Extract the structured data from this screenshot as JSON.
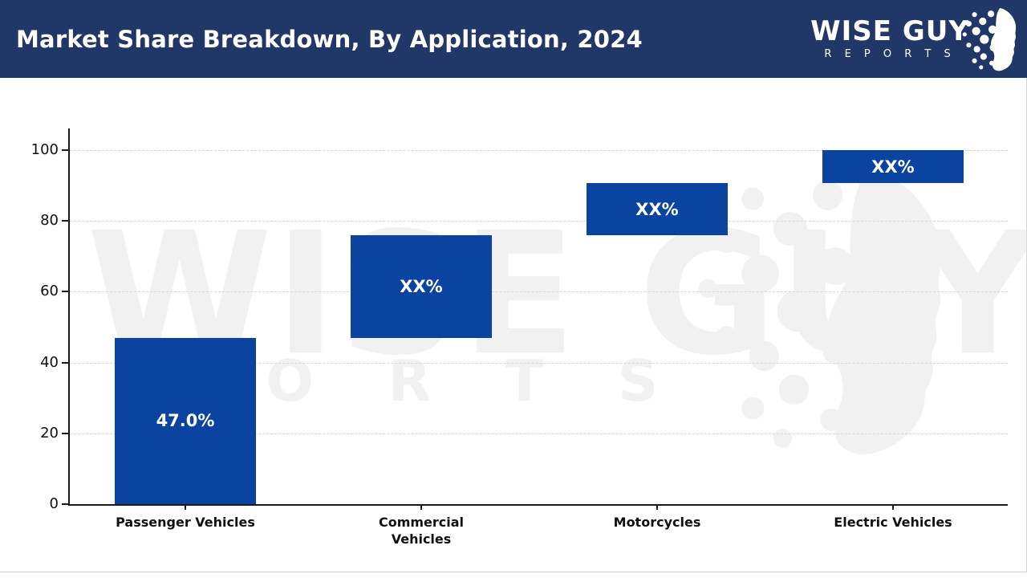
{
  "header": {
    "title": "Market Share Breakdown, By Application, 2024",
    "background": "#203767",
    "logo": {
      "line1": "WISE GUY",
      "line2": "R E P O R T S"
    }
  },
  "watermark": {
    "line1": "WISE GUY",
    "line2": "P O R T S"
  },
  "chart_data": {
    "type": "bar",
    "subtype": "waterfall",
    "title": "Market Share Breakdown, By Application, 2024",
    "categories": [
      "Passenger Vehicles",
      "Commercial\nVehicles",
      "Motorcycles",
      "Electric Vehicles"
    ],
    "bars": [
      {
        "category": "Passenger Vehicles",
        "label": "47.0%",
        "start": 0,
        "end": 47
      },
      {
        "category": "Commercial\nVehicles",
        "label": "XX%",
        "start": 47,
        "end": 76
      },
      {
        "category": "Motorcycles",
        "label": "XX%",
        "start": 76,
        "end": 90.6
      },
      {
        "category": "Electric Vehicles",
        "label": "XX%",
        "start": 90.6,
        "end": 100
      }
    ],
    "ylim": [
      0,
      100
    ],
    "yticks": [
      0,
      20,
      40,
      60,
      80,
      100
    ],
    "grid": true,
    "legend": false,
    "bar_color": "#0a44a0",
    "axis_color": "#1a1a1a",
    "gridline_color": "#d8d8d8",
    "value_label_color": "#ffffff"
  }
}
